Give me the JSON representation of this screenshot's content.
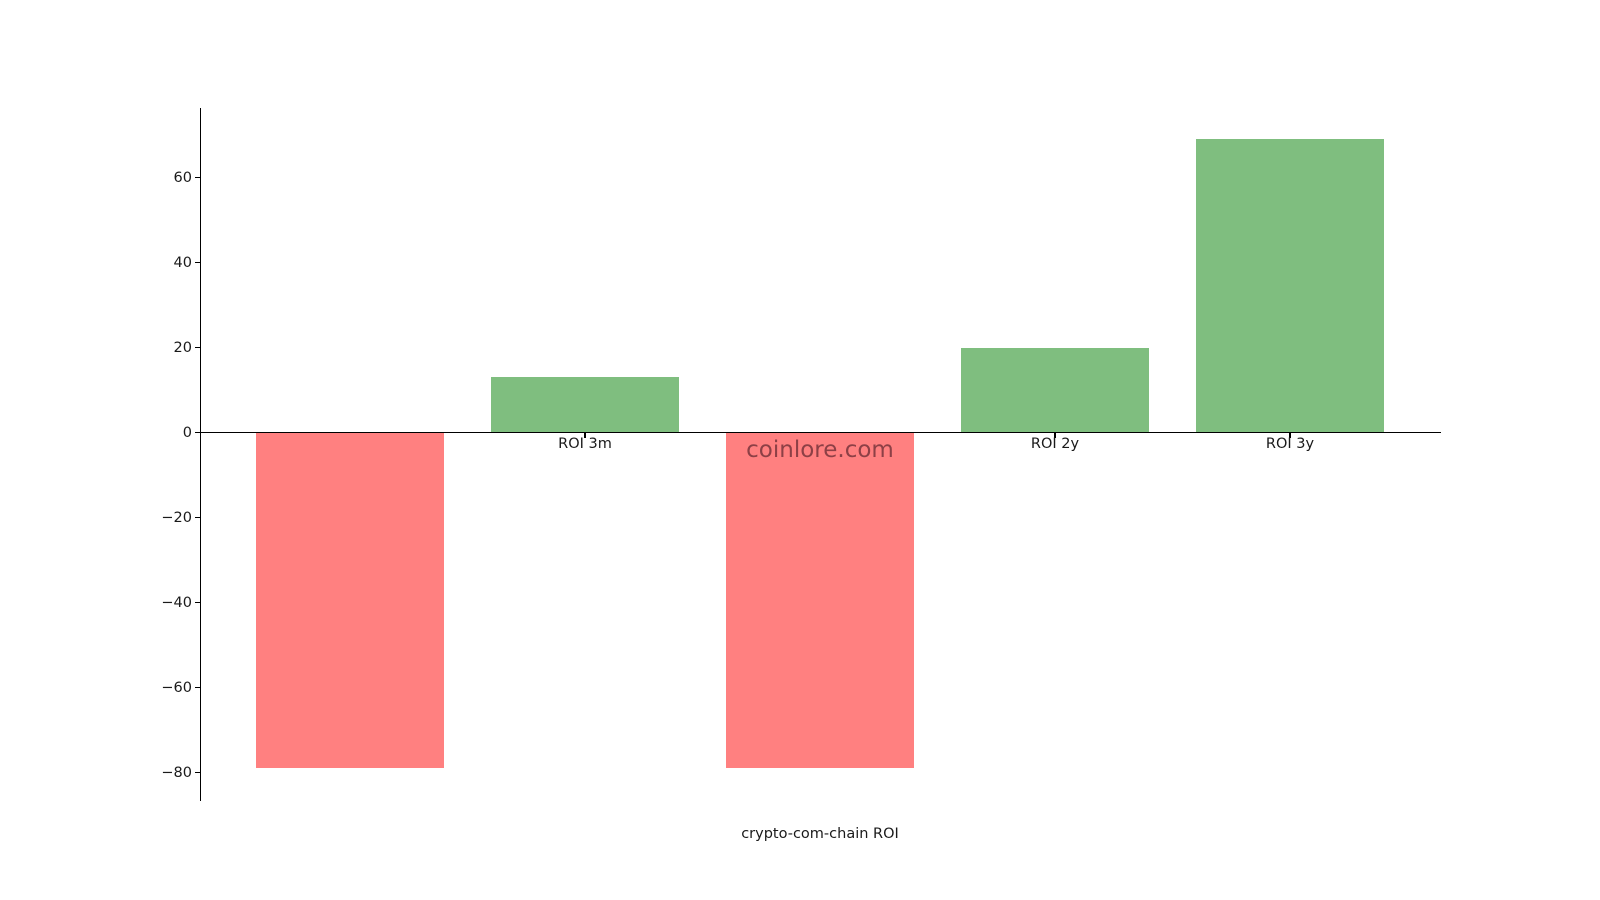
{
  "watermark": "coinlore.com",
  "colors": {
    "positive_bar": "#7FBE7F",
    "negative_bar": "#FF8080",
    "axis": "#000000",
    "text": "#1a1a1a",
    "watermark": "#8D4046",
    "background": "#FFFFFF"
  },
  "chart_data": {
    "type": "bar",
    "title": "crypto-com-chain ROI",
    "xlabel": "",
    "ylabel": "",
    "grid": false,
    "legend": "none",
    "categories": [
      "",
      "ROI 3m",
      "",
      "ROI 2y",
      "ROI 3y"
    ],
    "label_visible": [
      false,
      true,
      false,
      true,
      true
    ],
    "values": [
      -79,
      13,
      -79,
      20,
      69
    ],
    "bar_colors": [
      "#FF8080",
      "#7FBE7F",
      "#FF8080",
      "#7FBE7F",
      "#7FBE7F"
    ],
    "yticks": [
      {
        "value": 60,
        "label": "60"
      },
      {
        "value": 40,
        "label": "40"
      },
      {
        "value": 20,
        "label": "20"
      },
      {
        "value": 0,
        "label": "0"
      },
      {
        "value": -20,
        "label": "−20"
      },
      {
        "value": -40,
        "label": "−40"
      },
      {
        "value": -60,
        "label": "−60"
      },
      {
        "value": -80,
        "label": "−80"
      }
    ],
    "ylim": [
      -87,
      77
    ]
  }
}
